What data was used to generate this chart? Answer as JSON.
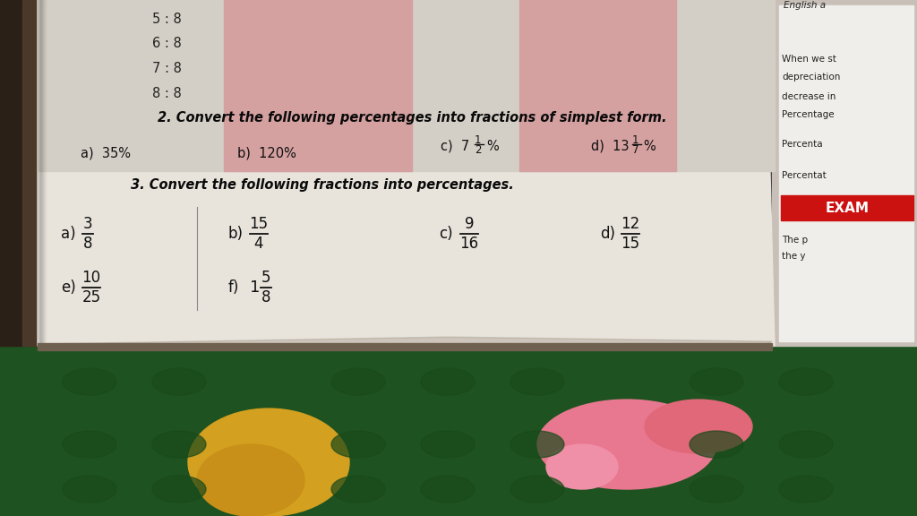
{
  "bg_color": "#2a2a2a",
  "page_color": "#e8e4dc",
  "page_top_color": "#d4cfc6",
  "pink_col1_color": "#d4a0a0",
  "pink_col2_color": "#d4a0a0",
  "table_text_color": "#222222",
  "body_text_color": "#111111",
  "right_panel_color": "#c8c0b8",
  "right_white_color": "#f0eeea",
  "exam_box_color": "#cc1111",
  "shadow_color": "#555050",
  "fabric_dark": "#1a4a1a",
  "fabric_yellow": "#d4a020",
  "fabric_pink": "#e87890",
  "title_q2": "2. Convert the following percentages into fractions of simplest form.",
  "title_q3": "3. Convert the following fractions into percentages.",
  "table_rows": [
    "5 : 8",
    "6 : 8",
    "7 : 8",
    "8 : 8"
  ],
  "right_texts_top": [
    "English a"
  ],
  "right_texts_mid": [
    "When we st",
    "depreciation",
    "decrease in",
    "Percentage"
  ],
  "right_text_pct": "Percenta",
  "right_exam_texts": [
    "The p",
    "the y"
  ],
  "spine_color": "#3a3028",
  "page_shadow": "#b8b0a0"
}
